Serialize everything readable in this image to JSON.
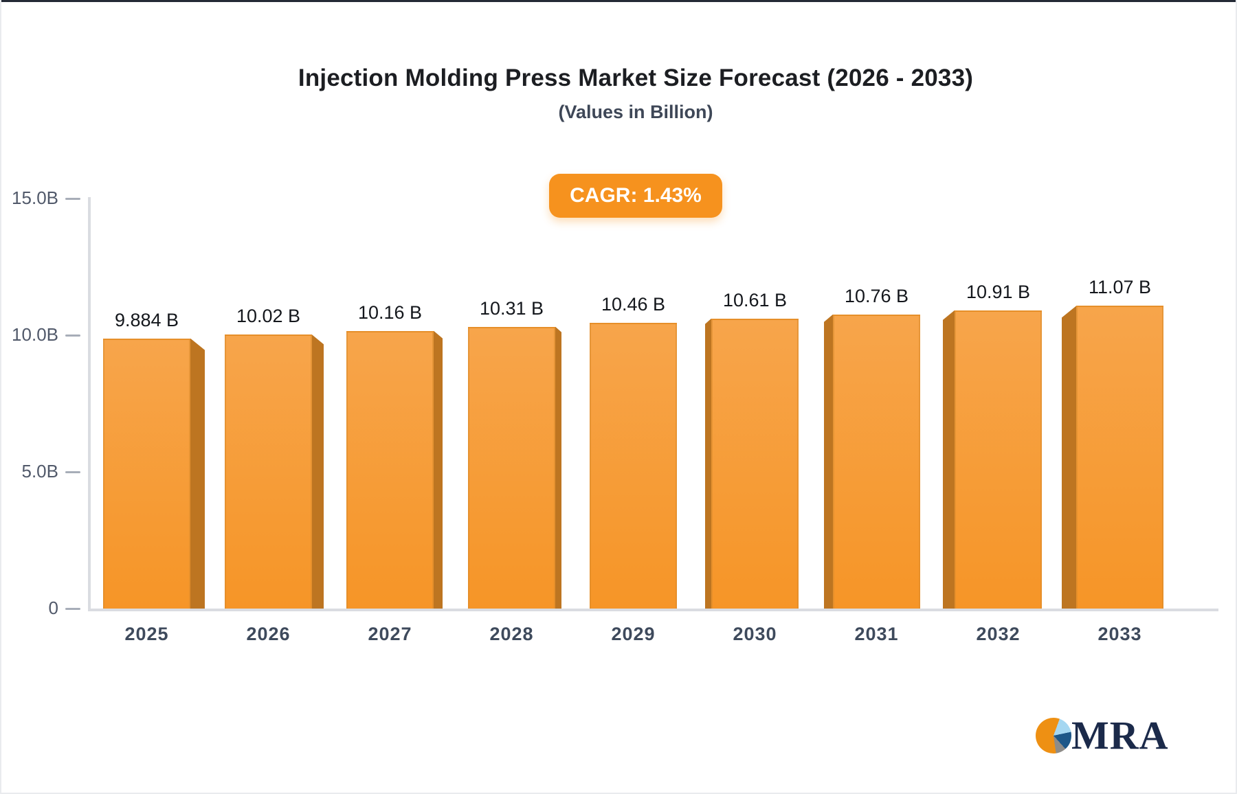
{
  "header": {
    "title": "Injection Molding Press Market Size Forecast (2026 - 2033)",
    "subtitle": "(Values in Billion)",
    "cagr_label": "CAGR: 1.43%"
  },
  "logo": {
    "text": "MRA",
    "pie_icon_colors": [
      "#ee9013",
      "#a5d7f1",
      "#1d5788",
      "#8e8c88"
    ]
  },
  "chart_data": {
    "type": "bar",
    "title": "Injection Molding Press Market Size Forecast (2026 - 2033)",
    "subtitle": "(Values in Billion)",
    "annotation": "CAGR: 1.43%",
    "categories": [
      "2025",
      "2026",
      "2027",
      "2028",
      "2029",
      "2030",
      "2031",
      "2032",
      "2033"
    ],
    "values": [
      9.884,
      10.02,
      10.16,
      10.31,
      10.46,
      10.61,
      10.76,
      10.91,
      11.07
    ],
    "value_labels": [
      "9.884 B",
      "10.02 B",
      "10.16 B",
      "10.31 B",
      "10.46 B",
      "10.61 B",
      "10.76 B",
      "10.91 B",
      "11.07 B"
    ],
    "xlabel": "",
    "ylabel": "",
    "ylim": [
      0,
      15
    ],
    "yticks": [
      {
        "v": 0,
        "label": "0"
      },
      {
        "v": 5,
        "label": "5.0B"
      },
      {
        "v": 10,
        "label": "10.0B"
      },
      {
        "v": 15,
        "label": "15.0B"
      }
    ],
    "grid": "off",
    "legend": "none",
    "bar_style": "3d-beveled",
    "colors": {
      "bar_top": "#f7a54b",
      "bar_bottom": "#f69527",
      "bar_side": "#bd7521",
      "axis": "#dadce1",
      "tick": "#a7adb8",
      "ytick_label": "#51596a",
      "category_label": "#3e4a5c",
      "value_label": "#14171c",
      "badge": "#f6921e",
      "badge_text": "#ffffff"
    }
  }
}
